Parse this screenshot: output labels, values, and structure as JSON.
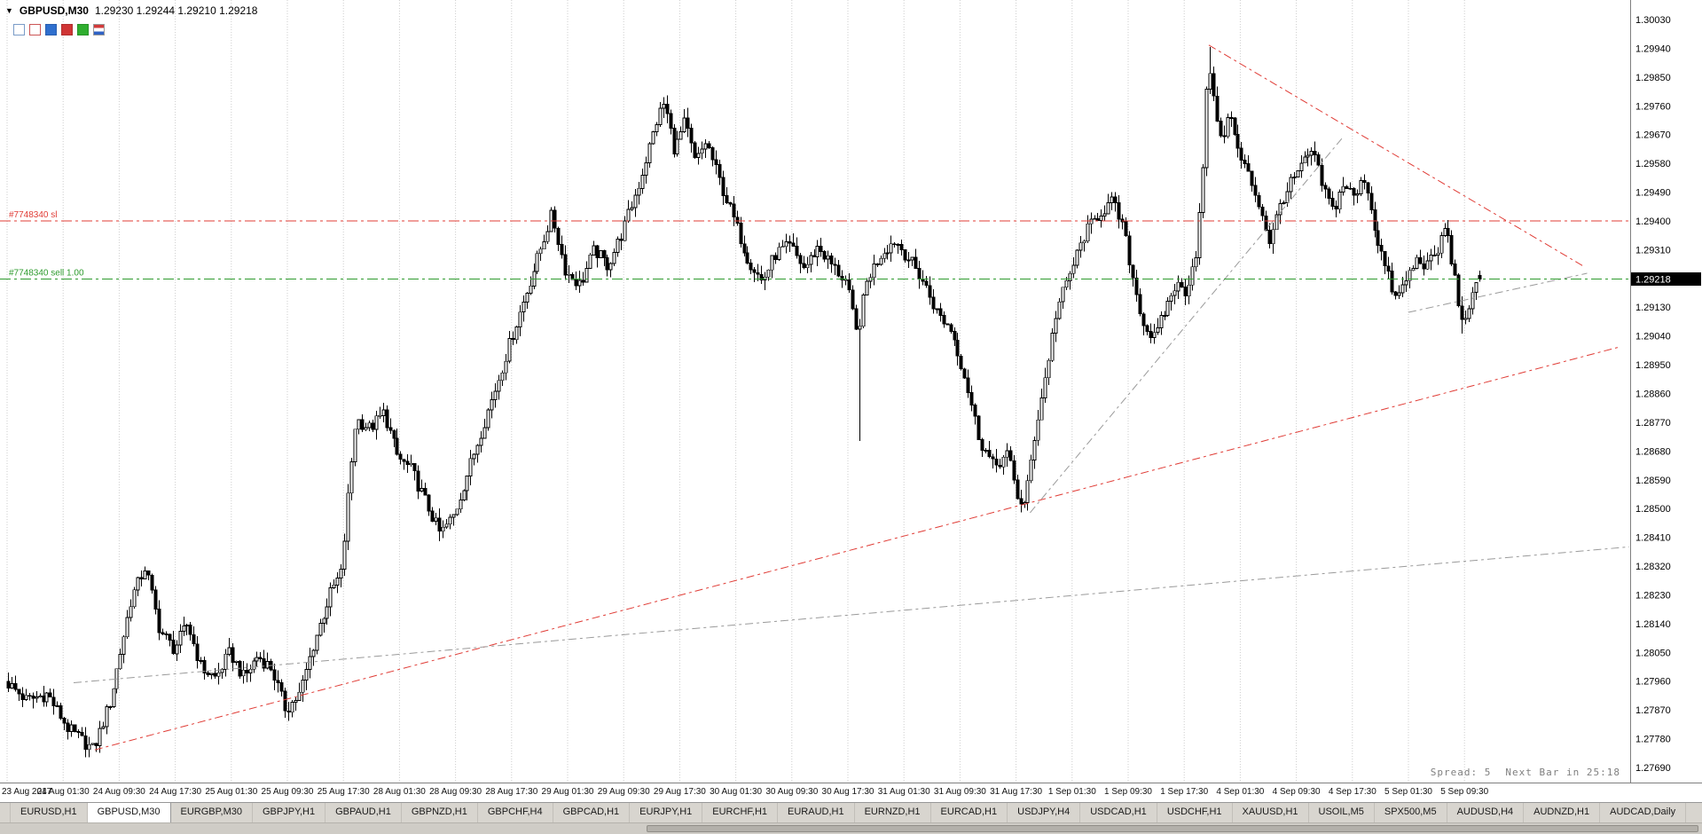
{
  "chart_header": {
    "dropdown_icon": "▼",
    "symbol_period": "GBPUSD,M30",
    "ohlc_line": "1.29230 1.29244 1.29210 1.29218"
  },
  "swatches": [
    {
      "name": "outline-blue",
      "fill": "#ffffff",
      "border": "#7a9cc8"
    },
    {
      "name": "outline-red",
      "fill": "#ffffff",
      "border": "#cc5555"
    },
    {
      "name": "solid-blue",
      "fill": "#2f6fce",
      "border": "#2a5faf"
    },
    {
      "name": "solid-red",
      "fill": "#d03535",
      "border": "#b02f2f"
    },
    {
      "name": "solid-green",
      "fill": "#2fae2f",
      "border": "#289328"
    },
    {
      "name": "striped-red-white-blue",
      "fill": "striped",
      "border": "#999999"
    }
  ],
  "overlay": {
    "spread": "Spread: 5",
    "next_bar": "Next Bar in 25:18"
  },
  "chart_data": {
    "type": "candlestick",
    "title": "GBPUSD,M30",
    "ylim": [
      1.2769,
      1.3003
    ],
    "y_tick_step": 0.0009,
    "y_tick_labels": [
      "1.30030",
      "1.29940",
      "1.29850",
      "1.29760",
      "1.29670",
      "1.29580",
      "1.29490",
      "1.29400",
      "1.29310",
      "1.29220",
      "1.29130",
      "1.29040",
      "1.28950",
      "1.28860",
      "1.28770",
      "1.28680",
      "1.28590",
      "1.28500",
      "1.28410",
      "1.28320",
      "1.28230",
      "1.28140",
      "1.28050",
      "1.27960",
      "1.27870",
      "1.27780",
      "1.27690"
    ],
    "x_tick_labels": [
      "23 Aug 2017",
      "24 Aug 01:30",
      "24 Aug 09:30",
      "24 Aug 17:30",
      "25 Aug 01:30",
      "25 Aug 09:30",
      "25 Aug 17:30",
      "28 Aug 01:30",
      "28 Aug 09:30",
      "28 Aug 17:30",
      "29 Aug 01:30",
      "29 Aug 09:30",
      "29 Aug 17:30",
      "30 Aug 01:30",
      "30 Aug 09:30",
      "30 Aug 17:30",
      "31 Aug 01:30",
      "31 Aug 09:30",
      "31 Aug 17:30",
      "1 Sep 01:30",
      "1 Sep 09:30",
      "1 Sep 17:30",
      "4 Sep 01:30",
      "4 Sep 09:30",
      "4 Sep 17:30",
      "5 Sep 01:30",
      "5 Sep 09:30"
    ],
    "bars_per_tick": 16,
    "bar_count": 421,
    "current_price": "1.29218",
    "last_bar_ohlc": [
      1.2923,
      1.29244,
      1.2921,
      1.29218
    ],
    "colors": {
      "grid": "#cdcdcd",
      "bull": "#ffffff",
      "bear": "#000000",
      "outline": "#000000",
      "axis_border": "#7f7f7f",
      "axis_text": "#000000",
      "current_price_bg": "#000000",
      "current_price_text": "#ffffff",
      "red_line": "#e03c36",
      "green_line": "#2e9b2e",
      "gray_line": "#9a9a9a"
    },
    "order_lines": [
      {
        "name": "stop-loss",
        "label": "#7748340 sl",
        "price": 1.294,
        "color": "#e03c36",
        "dash": "12,4,3,4"
      },
      {
        "name": "sell-position",
        "label": "#7748340 sell 1.00",
        "price": 1.29218,
        "color": "#2e9b2e",
        "dash": "12,4,3,4"
      }
    ],
    "trendlines": [
      {
        "name": "support-red-ascending",
        "color": "#e03c36",
        "dash": "9,4,3,4",
        "points": [
          [
            25,
            1.27745
          ],
          [
            460,
            1.29005
          ]
        ]
      },
      {
        "name": "gray-ascending-long",
        "color": "#9a9a9a",
        "dash": "9,4,3,4",
        "points": [
          [
            19,
            1.27955
          ],
          [
            463,
            1.2838
          ]
        ]
      },
      {
        "name": "gray-ascending-steep",
        "color": "#9a9a9a",
        "dash": "9,4,3,4",
        "points": [
          [
            292,
            1.28487
          ],
          [
            381,
            1.29658
          ]
        ]
      },
      {
        "name": "resistance-red-descending",
        "color": "#e03c36",
        "dash": "9,4,3,4",
        "points": [
          [
            343,
            1.2995
          ],
          [
            450,
            1.29258
          ]
        ]
      },
      {
        "name": "gray-minor-short",
        "color": "#9a9a9a",
        "dash": "9,4,3,4",
        "points": [
          [
            400,
            1.29114
          ],
          [
            451,
            1.29236
          ]
        ]
      }
    ],
    "price_path_anchors": [
      [
        0,
        1.2796
      ],
      [
        6,
        1.279
      ],
      [
        12,
        1.2792
      ],
      [
        18,
        1.2781
      ],
      [
        25,
        1.27745
      ],
      [
        30,
        1.279
      ],
      [
        36,
        1.2822
      ],
      [
        40,
        1.2832
      ],
      [
        44,
        1.2812
      ],
      [
        48,
        1.2806
      ],
      [
        52,
        1.2814
      ],
      [
        56,
        1.28
      ],
      [
        60,
        1.2797
      ],
      [
        64,
        1.2805
      ],
      [
        68,
        1.2797
      ],
      [
        72,
        1.2804
      ],
      [
        76,
        1.28
      ],
      [
        80,
        1.2787
      ],
      [
        84,
        1.2792
      ],
      [
        88,
        1.2808
      ],
      [
        93,
        1.2824
      ],
      [
        96,
        1.283
      ],
      [
        98,
        1.2856
      ],
      [
        100,
        1.2878
      ],
      [
        104,
        1.2875
      ],
      [
        108,
        1.288
      ],
      [
        112,
        1.2866
      ],
      [
        116,
        1.2862
      ],
      [
        120,
        1.2852
      ],
      [
        124,
        1.2842
      ],
      [
        128,
        1.2848
      ],
      [
        134,
        1.2868
      ],
      [
        140,
        1.2888
      ],
      [
        144,
        1.2902
      ],
      [
        150,
        1.2922
      ],
      [
        156,
        1.2942
      ],
      [
        160,
        1.2924
      ],
      [
        164,
        1.292
      ],
      [
        168,
        1.2931
      ],
      [
        172,
        1.2926
      ],
      [
        176,
        1.2936
      ],
      [
        181,
        1.2952
      ],
      [
        186,
        1.2972
      ],
      [
        188,
        1.2977
      ],
      [
        191,
        1.2962
      ],
      [
        194,
        1.2971
      ],
      [
        197,
        1.2958
      ],
      [
        200,
        1.2965
      ],
      [
        204,
        1.2952
      ],
      [
        208,
        1.294
      ],
      [
        212,
        1.2928
      ],
      [
        216,
        1.2921
      ],
      [
        220,
        1.293
      ],
      [
        224,
        1.2932
      ],
      [
        228,
        1.2925
      ],
      [
        232,
        1.2932
      ],
      [
        236,
        1.2926
      ],
      [
        240,
        1.2921
      ],
      [
        243,
        1.2904
      ],
      [
        246,
        1.2922
      ],
      [
        250,
        1.293
      ],
      [
        254,
        1.2934
      ],
      [
        258,
        1.2928
      ],
      [
        262,
        1.2921
      ],
      [
        266,
        1.2911
      ],
      [
        270,
        1.2906
      ],
      [
        274,
        1.2891
      ],
      [
        278,
        1.2872
      ],
      [
        282,
        1.2863
      ],
      [
        286,
        1.2867
      ],
      [
        289,
        1.2853
      ],
      [
        291,
        1.2851
      ],
      [
        294,
        1.2874
      ],
      [
        297,
        1.2892
      ],
      [
        300,
        1.2912
      ],
      [
        304,
        1.2924
      ],
      [
        308,
        1.2936
      ],
      [
        312,
        1.2942
      ],
      [
        316,
        1.2946
      ],
      [
        319,
        1.2938
      ],
      [
        322,
        1.2921
      ],
      [
        325,
        1.2907
      ],
      [
        328,
        1.2903
      ],
      [
        331,
        1.2912
      ],
      [
        334,
        1.292
      ],
      [
        337,
        1.2918
      ],
      [
        340,
        1.2931
      ],
      [
        342,
        1.2958
      ],
      [
        343,
        1.2988
      ],
      [
        345,
        1.2979
      ],
      [
        347,
        1.2963
      ],
      [
        349,
        1.2975
      ],
      [
        352,
        1.2961
      ],
      [
        355,
        1.2954
      ],
      [
        358,
        1.2945
      ],
      [
        361,
        1.2933
      ],
      [
        364,
        1.2946
      ],
      [
        367,
        1.2952
      ],
      [
        370,
        1.2957
      ],
      [
        373,
        1.2962
      ],
      [
        376,
        1.2951
      ],
      [
        379,
        1.2943
      ],
      [
        382,
        1.2952
      ],
      [
        385,
        1.2947
      ],
      [
        388,
        1.2954
      ],
      [
        391,
        1.2937
      ],
      [
        394,
        1.2925
      ],
      [
        397,
        1.2915
      ],
      [
        400,
        1.2922
      ],
      [
        403,
        1.2928
      ],
      [
        406,
        1.2926
      ],
      [
        409,
        1.2931
      ],
      [
        411,
        1.2939
      ],
      [
        413,
        1.2927
      ],
      [
        415,
        1.2913
      ],
      [
        417,
        1.2907
      ],
      [
        419,
        1.2917
      ],
      [
        420,
        1.29218
      ]
    ],
    "spike_wicks": [
      {
        "bar": 25,
        "side": "low",
        "price": 1.27738
      },
      {
        "bar": 188,
        "side": "high",
        "price": 1.29792
      },
      {
        "bar": 243,
        "side": "low",
        "price": 1.28712
      },
      {
        "bar": 291,
        "side": "low",
        "price": 1.28493
      },
      {
        "bar": 343,
        "side": "high",
        "price": 1.29944
      },
      {
        "bar": 415,
        "side": "low",
        "price": 1.29047
      }
    ]
  },
  "tabs": {
    "active": "GBPUSD,M30",
    "items": [
      {
        "label": "EURUSD,H1"
      },
      {
        "label": "GBPUSD,M30"
      },
      {
        "label": "EURGBP,M30"
      },
      {
        "label": "GBPJPY,H1"
      },
      {
        "label": "GBPAUD,H1"
      },
      {
        "label": "GBPNZD,H1"
      },
      {
        "label": "GBPCHF,H4"
      },
      {
        "label": "GBPCAD,H1"
      },
      {
        "label": "EURJPY,H1"
      },
      {
        "label": "EURCHF,H1"
      },
      {
        "label": "EURAUD,H1"
      },
      {
        "label": "EURNZD,H1"
      },
      {
        "label": "EURCAD,H1"
      },
      {
        "label": "USDJPY,H4"
      },
      {
        "label": "USDCAD,H1"
      },
      {
        "label": "USDCHF,H1"
      },
      {
        "label": "XAUUSD,H1"
      },
      {
        "label": "USOIL,M5"
      },
      {
        "label": "SPX500,M5"
      },
      {
        "label": "AUDUSD,H4"
      },
      {
        "label": "AUDNZD,H1"
      },
      {
        "label": "AUDCAD,Daily"
      }
    ]
  }
}
